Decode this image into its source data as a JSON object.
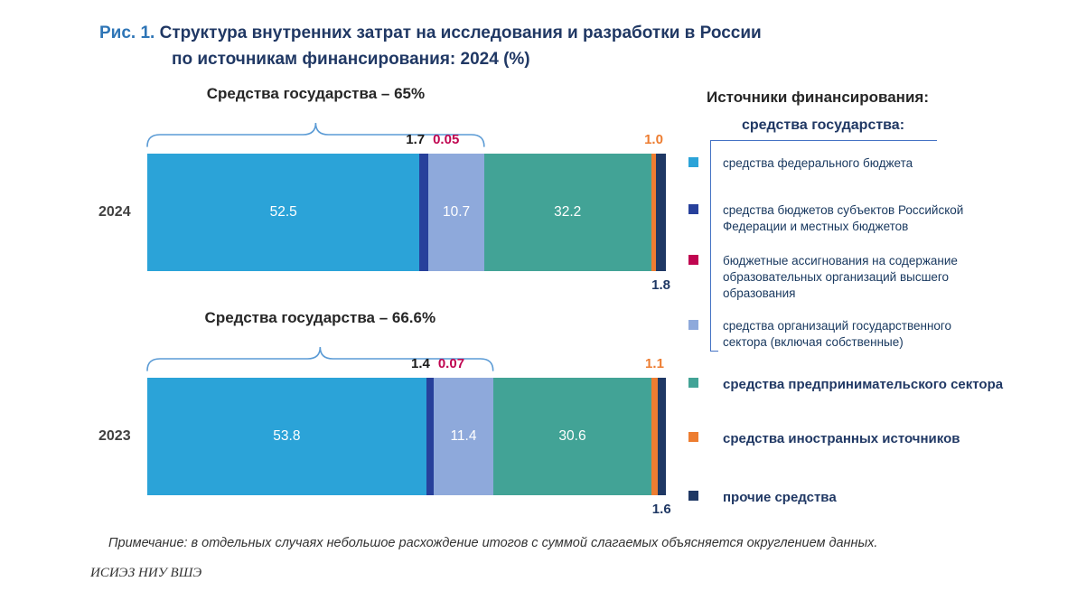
{
  "title": {
    "prefix": "Рис. 1.",
    "line1": "Структура внутренних затрат на исследования и разработки в России",
    "line2": "по источникам финансирования: 2024 (%)"
  },
  "chart_data": {
    "type": "bar",
    "orientation": "horizontal",
    "stacked": true,
    "unit": "%",
    "xlim": [
      0,
      100
    ],
    "categories": [
      "2024",
      "2023"
    ],
    "brace_color": "#5B9BD5",
    "braces": [
      {
        "label": "Средства государства – 65%",
        "span_pct": 64.95
      },
      {
        "label": "Средства государства – 66.6%",
        "span_pct": 66.67
      }
    ],
    "series": [
      {
        "key": "federal-budget",
        "name": "средства федерального бюджета",
        "color": "#2BA3D8",
        "values": [
          52.5,
          53.8
        ],
        "labels": [
          "52.5",
          "53.8"
        ],
        "label_position": "inside",
        "label_anchor": "center",
        "label_color": "#ffffff"
      },
      {
        "key": "regional-budgets",
        "name": "средства бюджетов субъектов Российской Федерации и местных бюджетов",
        "color": "#27409B",
        "values": [
          1.7,
          1.4
        ],
        "labels": [
          "1.7",
          "1.4"
        ],
        "label_position": "above",
        "label_anchor": "end",
        "label_color": "#1a1a1a"
      },
      {
        "key": "higher-education-appropriations",
        "name": "бюджетные ассигнования на содержание образовательных организаций высшего образования",
        "color": "#C00550",
        "values": [
          0.05,
          0.07
        ],
        "labels": [
          "0.05",
          "0.07"
        ],
        "label_position": "above",
        "label_anchor": "start",
        "label_color": "#C00550"
      },
      {
        "key": "state-sector-organizations",
        "name": "средства организаций государственного сектора (включая собственные)",
        "color": "#8EA9DB",
        "values": [
          10.7,
          11.4
        ],
        "labels": [
          "10.7",
          "11.4"
        ],
        "label_position": "inside",
        "label_anchor": "center",
        "label_color": "#ffffff"
      },
      {
        "key": "business-sector",
        "name": "средства предпринимательского сектора",
        "color": "#42A396",
        "values": [
          32.2,
          30.6
        ],
        "labels": [
          "32.2",
          "30.6"
        ],
        "label_position": "inside",
        "label_anchor": "center",
        "label_color": "#ffffff"
      },
      {
        "key": "foreign-sources",
        "name": "средства иностранных источников",
        "color": "#ED7D31",
        "values": [
          1.0,
          1.1
        ],
        "labels": [
          "1.0",
          "1.1"
        ],
        "label_position": "above",
        "label_anchor": "center",
        "label_color": "#ED7D31"
      },
      {
        "key": "other-funds",
        "name": "прочие средства",
        "color": "#1F3864",
        "values": [
          1.8,
          1.6
        ],
        "labels": [
          "1.8",
          "1.6"
        ],
        "label_position": "below",
        "label_anchor": "center",
        "label_color": "#1F3864"
      }
    ]
  },
  "legend": {
    "title": "Источники финансирования:",
    "group_title": "средства государства:"
  },
  "note": "Примечание: в отдельных случаях небольшое расхождение итогов с суммой слагаемых объясняется округлением данных.",
  "source": "ИСИЭЗ НИУ ВШЭ"
}
